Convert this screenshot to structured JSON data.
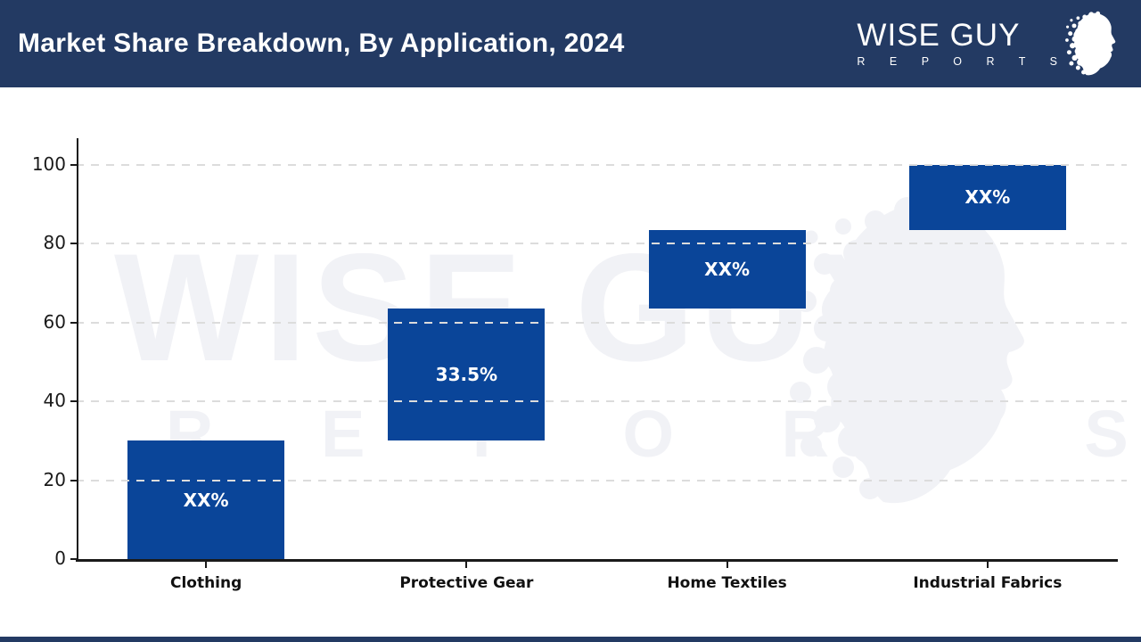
{
  "header": {
    "title": "Market Share Breakdown, By Application, 2024",
    "bg_color": "#233a63",
    "logo": {
      "line1": "WISE GUY",
      "line2": "R E P O R T S",
      "head_icon": "dotted-head-profile-icon"
    }
  },
  "watermark": {
    "line1": "WISE GUY",
    "line2": "R E P O R T S",
    "head_icon": "dotted-head-profile-icon",
    "color": "#f1f2f6"
  },
  "chart_data": {
    "type": "bar",
    "subtype": "floating-waterfall",
    "title": "Market Share Breakdown, By Application, 2024",
    "categories": [
      "Clothing",
      "Protective Gear",
      "Home Textiles",
      "Industrial Fabrics"
    ],
    "series": [
      {
        "name": "Market Share",
        "segments": [
          {
            "category": "Clothing",
            "from": 0,
            "to": 30,
            "label": "XX%"
          },
          {
            "category": "Protective Gear",
            "from": 30,
            "to": 63.5,
            "label": "33.5%"
          },
          {
            "category": "Home Textiles",
            "from": 63.5,
            "to": 83.5,
            "label": "XX%"
          },
          {
            "category": "Industrial Fabrics",
            "from": 83.5,
            "to": 100,
            "label": "XX%"
          }
        ]
      }
    ],
    "ylim": [
      0,
      100
    ],
    "yticks": [
      0,
      20,
      40,
      60,
      80,
      100
    ],
    "xlabel": "",
    "ylabel": "",
    "legend": "none",
    "grid": {
      "horizontal": true,
      "style": "dashed",
      "color": "#dcdcdc"
    },
    "bar_color": "#0a4599",
    "bar_label_color": "#ffffff",
    "axis_color": "#1a1a1a"
  },
  "footer": {
    "bar_color": "#233a63"
  }
}
